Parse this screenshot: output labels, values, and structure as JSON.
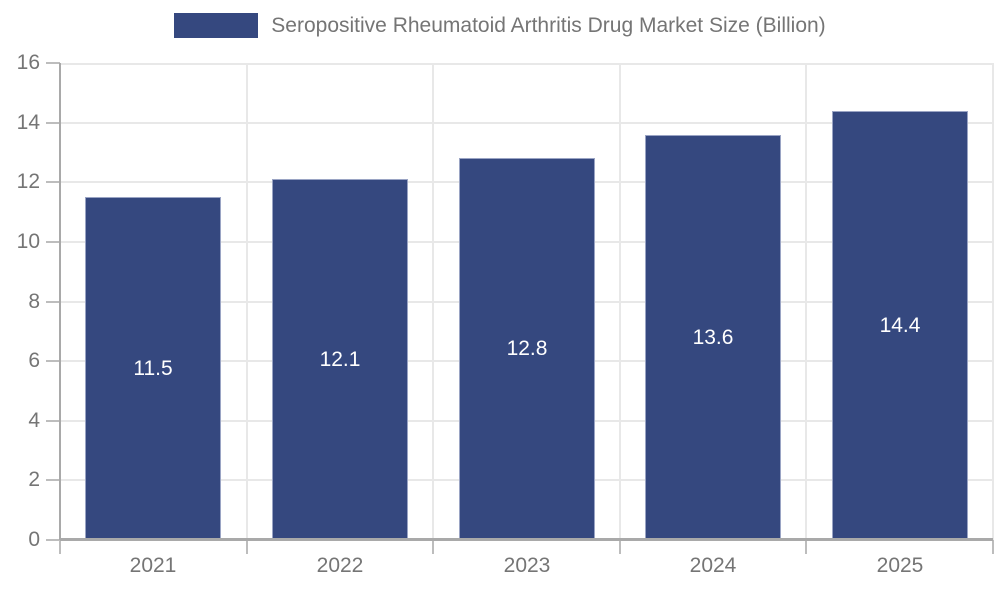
{
  "legend": {
    "label": "Seropositive Rheumatoid Arthritis Drug Market Size (Billion)"
  },
  "chart_data": {
    "type": "bar",
    "title": "Seropositive Rheumatoid Arthritis Drug Market Size (Billion)",
    "categories": [
      "2021",
      "2022",
      "2023",
      "2024",
      "2025"
    ],
    "values": [
      11.5,
      12.1,
      12.8,
      13.6,
      14.4
    ],
    "bar_value_labels": [
      "11.5",
      "12.1",
      "12.8",
      "13.6",
      "14.4"
    ],
    "xlabel": "",
    "ylabel": "",
    "ylim": [
      0,
      16
    ],
    "yticks": [
      0,
      2,
      4,
      6,
      8,
      10,
      12,
      14,
      16
    ],
    "grid": true,
    "legend_position": "top-center",
    "colors": {
      "bar_fill": "#35487f",
      "bar_edge": "#9aa4c4",
      "value_label": "#ffffff",
      "tick_label": "#757575",
      "legend_text": "#757575",
      "gridline": "#e8e8e8",
      "axis_line": "#a9a9a9",
      "tick_mark": "#bdbdbd",
      "background": "#ffffff"
    }
  }
}
